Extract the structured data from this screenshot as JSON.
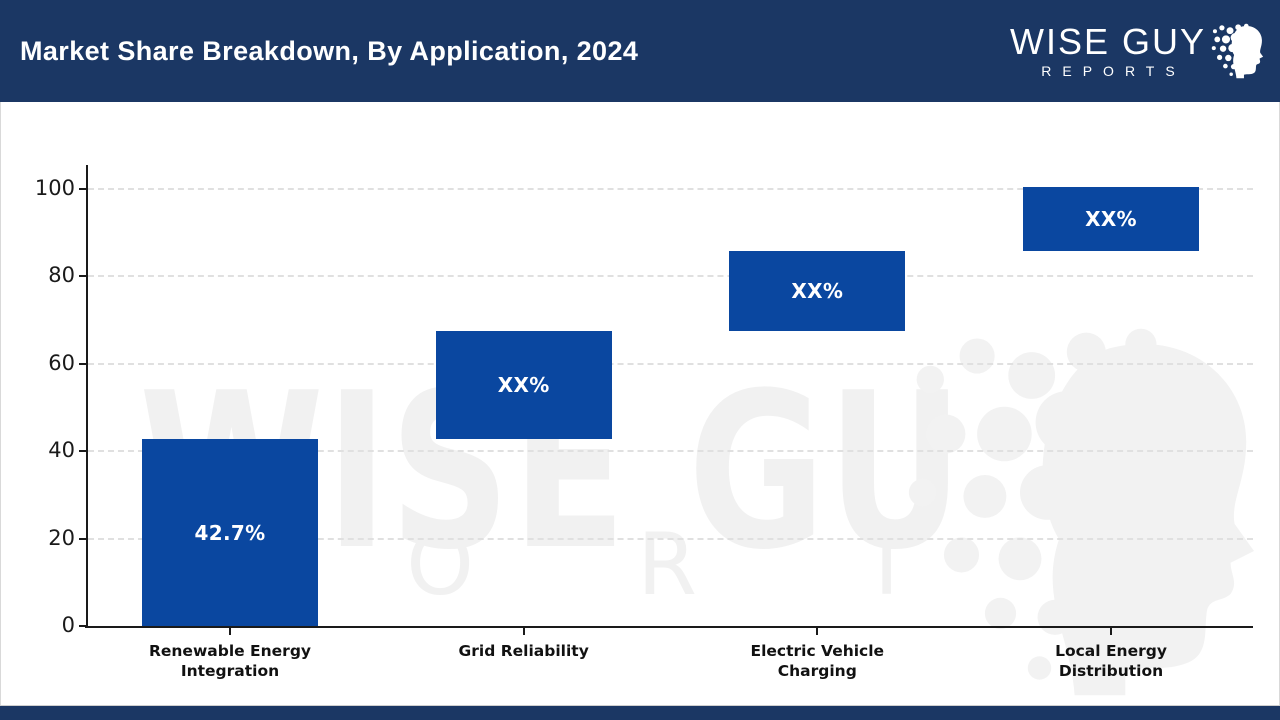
{
  "header": {
    "title": "Market Share Breakdown, By Application, 2024",
    "brand": {
      "line1": "WISE GUY",
      "line2": "REPORTS"
    }
  },
  "watermark": {
    "line1": "WISE GU",
    "line2": "P O R T S"
  },
  "colors": {
    "header_navy": "#1b3764",
    "bar_blue": "#0a47a0",
    "bar_label_white": "#ffffff",
    "gridline_gray": "#e0e0e0",
    "watermark_gray": "#f1f1f1",
    "axis_black": "#1a1a1a"
  },
  "chart_data": {
    "type": "bar",
    "subtype": "waterfall",
    "title": "Market Share Breakdown, By Application, 2024",
    "categories": [
      "Renewable Energy\nIntegration",
      "Grid Reliability",
      "Electric Vehicle\nCharging",
      "Local Energy\nDistribution"
    ],
    "segments": [
      {
        "category": "Renewable Energy\nIntegration",
        "start": 0,
        "end": 42.7,
        "label": "42.7%"
      },
      {
        "category": "Grid Reliability",
        "start": 42.7,
        "end": 67.4,
        "label": "XX%"
      },
      {
        "category": "Electric Vehicle\nCharging",
        "start": 67.4,
        "end": 85.8,
        "label": "XX%"
      },
      {
        "category": "Local Energy\nDistribution",
        "start": 85.8,
        "end": 100.3,
        "label": "XX%"
      }
    ],
    "yticks": [
      0,
      20,
      40,
      60,
      80,
      100
    ],
    "ylim": [
      0,
      105
    ],
    "xlabel": "",
    "ylabel": "",
    "grid": true,
    "legend": "none",
    "bar_color": "#0a47a0",
    "value_label_color": "#ffffff"
  }
}
